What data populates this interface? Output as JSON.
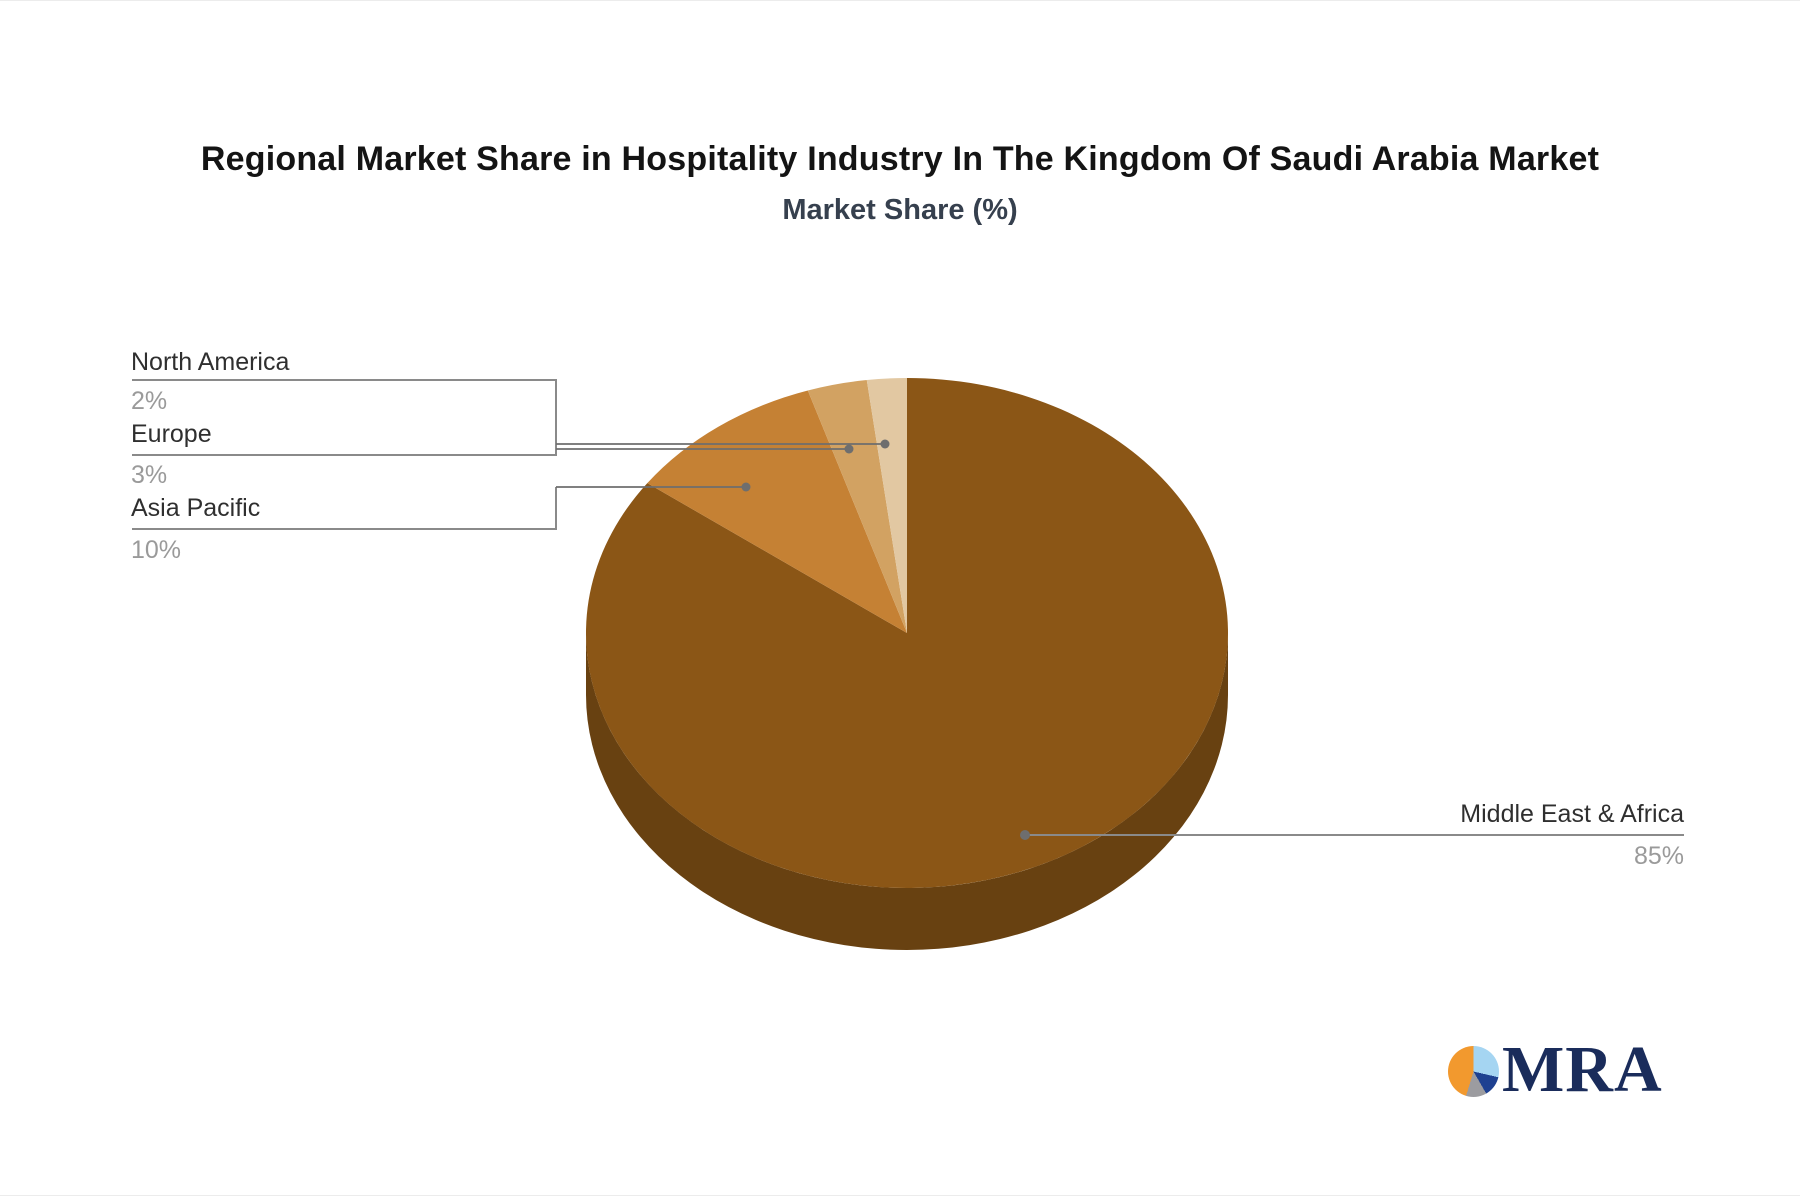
{
  "chart_data": {
    "type": "pie",
    "style": "3d",
    "title": "Regional Market Share in Hospitality Industry In The Kingdom Of Saudi Arabia Market",
    "subtitle": "Market Share (%)",
    "unit": "%",
    "legend_position": "none",
    "start_angle_deg": 0,
    "direction": "clockwise",
    "series": [
      {
        "name": "Middle East & Africa",
        "value": 85,
        "label": "85%",
        "color": "#8B5616"
      },
      {
        "name": "Asia Pacific",
        "value": 10,
        "label": "10%",
        "color": "#C58134"
      },
      {
        "name": "Europe",
        "value": 3,
        "label": "3%",
        "color": "#D2A262"
      },
      {
        "name": "North America",
        "value": 2,
        "label": "2%",
        "color": "#E2C8A2"
      }
    ]
  },
  "callout": {
    "line_color": "#8A8A8A",
    "connector_color": "#6E6E6E"
  },
  "logo": {
    "text": "MRA",
    "text_color": "#1A2C5B",
    "colors": {
      "orange": "#F2992E",
      "light_blue": "#A5D5F2",
      "navy": "#1E4191",
      "gray": "#9C9CA0"
    }
  }
}
